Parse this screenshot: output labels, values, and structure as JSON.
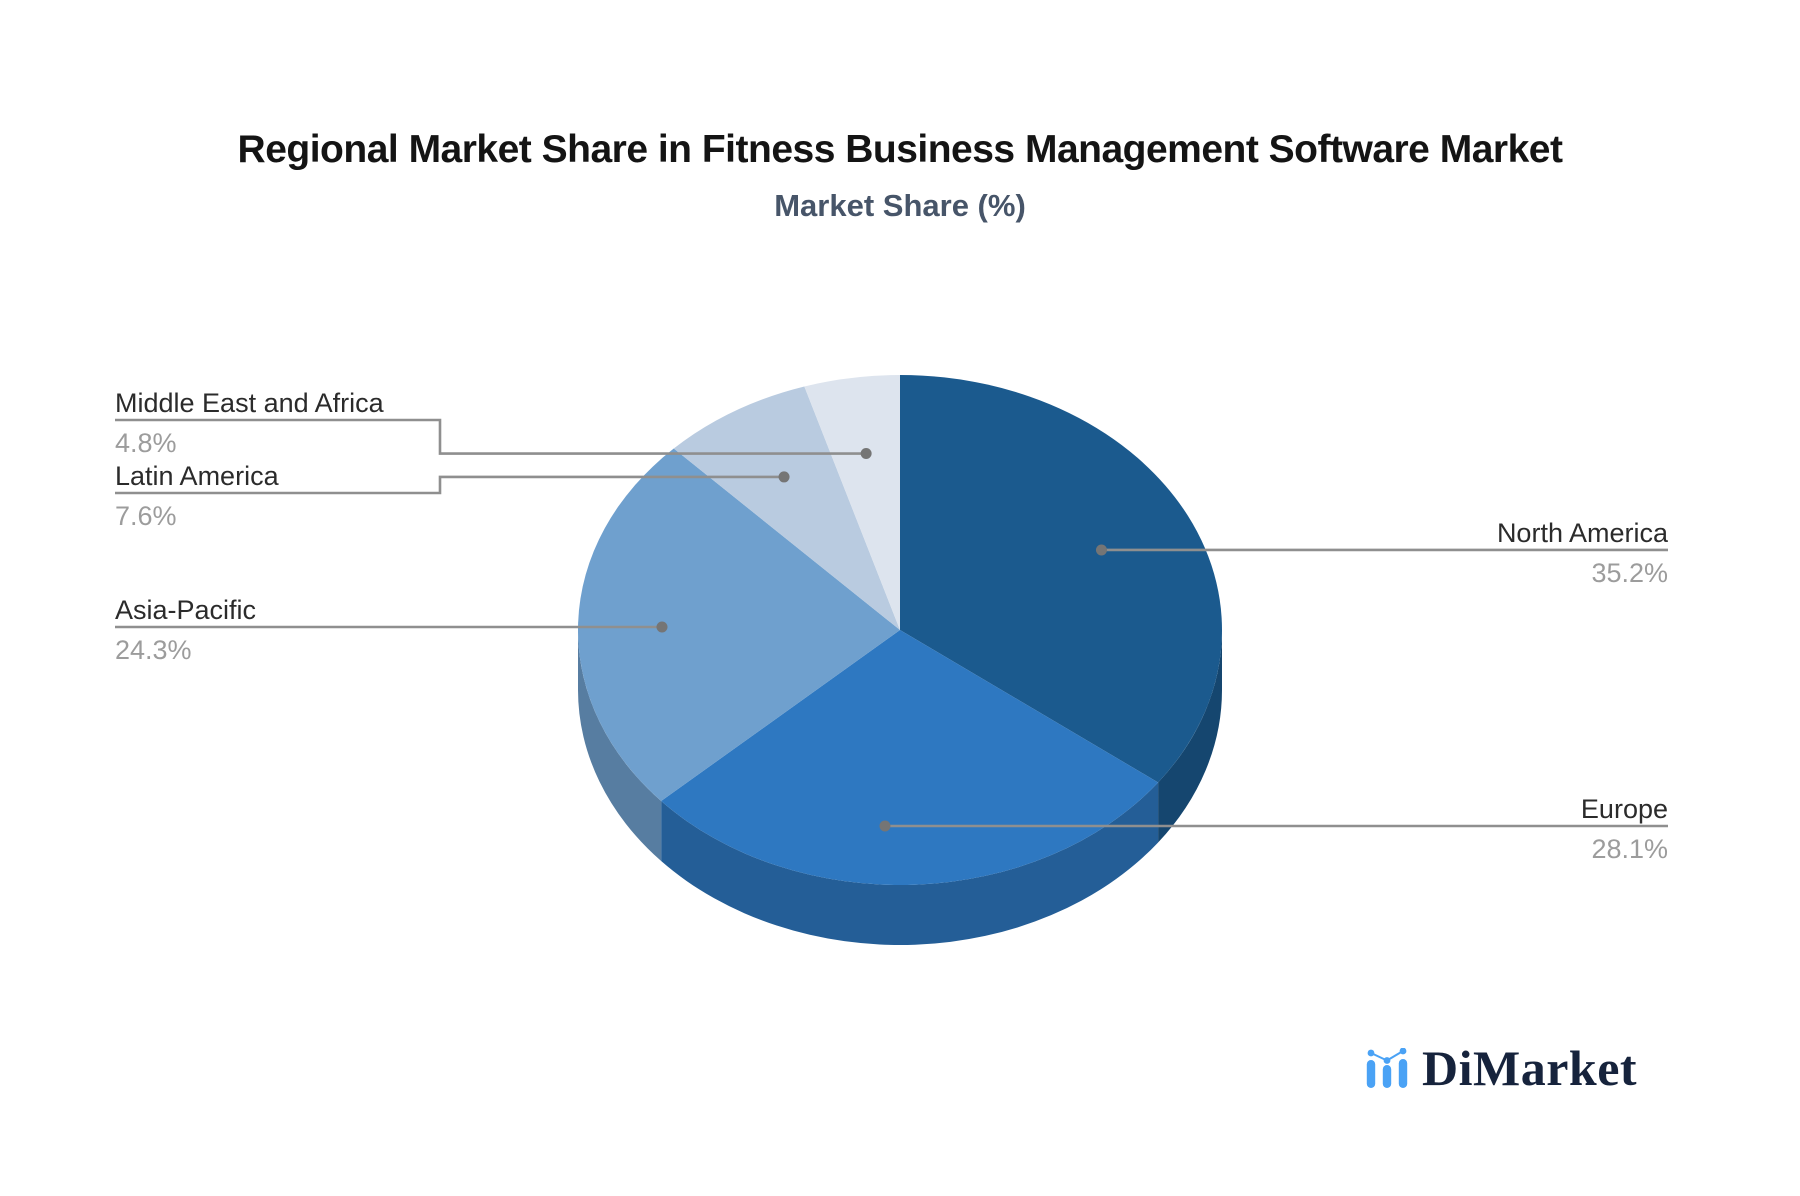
{
  "chart_data": {
    "type": "pie",
    "style": "3d-pie",
    "title": "Regional Market Share in Fitness Business Management Software Market",
    "subtitle": "Market Share (%)",
    "unit": "%",
    "start_angle": "12 o'clock, clockwise",
    "legend": "none (direct callout labels with leader lines)",
    "slices": [
      {
        "name": "North America",
        "value": 35.2,
        "pct_label": "35.2%",
        "color": "#1b5a8e"
      },
      {
        "name": "Europe",
        "value": 28.1,
        "pct_label": "28.1%",
        "color": "#2e78c1"
      },
      {
        "name": "Asia-Pacific",
        "value": 24.3,
        "pct_label": "24.3%",
        "color": "#6fa0ce"
      },
      {
        "name": "Latin America",
        "value": 7.6,
        "pct_label": "7.6%",
        "color": "#b9cbe0"
      },
      {
        "name": "Middle East and Africa",
        "value": 4.8,
        "pct_label": "4.8%",
        "color": "#dde4ee"
      }
    ],
    "colors": {
      "background": "#ffffff",
      "title": "#141414",
      "subtitle": "#475569",
      "label_text": "#2b2b2b",
      "pct_text": "#9c9c9c",
      "leader_line": "#8f8f8f",
      "leader_dot": "#757575"
    }
  },
  "logo": {
    "name": "DiMarket",
    "icon": "bar-chart-logo-icon",
    "icon_color": "#4aa2f5",
    "text_color": "#16233c"
  }
}
